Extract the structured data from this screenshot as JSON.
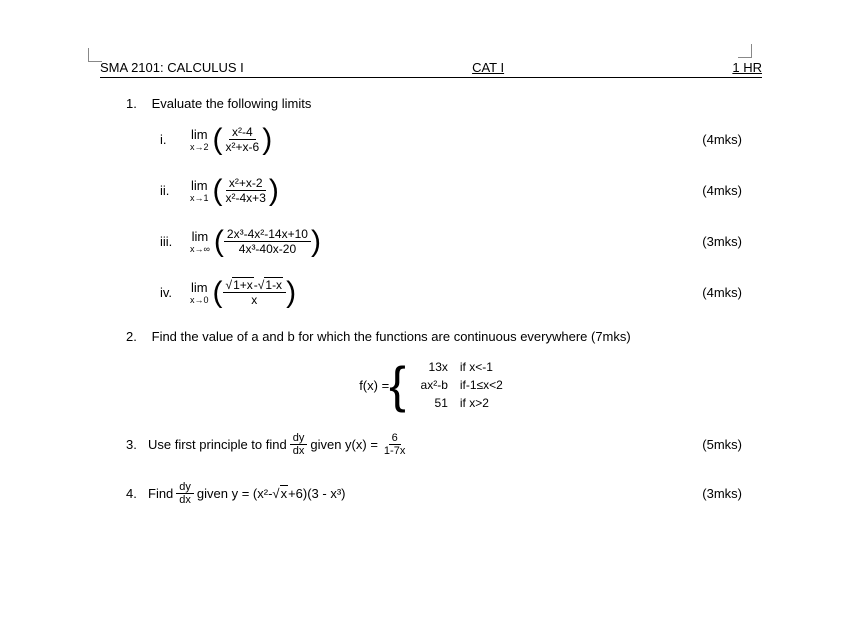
{
  "header": {
    "course": "SMA 2101: CALCULUS I",
    "exam": "CAT I",
    "duration": "1 HR"
  },
  "q1": {
    "num": "1.",
    "text": "Evaluate the following limits",
    "items": {
      "i": {
        "label": "i.",
        "lim_bot": "x→2",
        "num": "x²-4",
        "den": "x²+x-6",
        "marks": "(4mks)"
      },
      "ii": {
        "label": "ii.",
        "lim_bot": "x→1",
        "num": "x²+x-2",
        "den": "x²-4x+3",
        "marks": "(4mks)"
      },
      "iii": {
        "label": "iii.",
        "lim_bot": "x→∞",
        "num": "2x³-4x²-14x+10",
        "den": "4x³-40x-20",
        "marks": "(3mks)"
      },
      "iv": {
        "label": "iv.",
        "lim_bot": "x→0",
        "marks": "(4mks)"
      }
    }
  },
  "q2": {
    "num": "2.",
    "text": "Find the value of a and b for which the functions are continuous everywhere (7mks)",
    "prefix": "f(x) = ",
    "rows": {
      "r1": {
        "expr": "13x",
        "cond": "if x<-1"
      },
      "r2": {
        "expr": "ax²-b",
        "cond": "if-1≤x<2"
      },
      "r3": {
        "expr": "51",
        "cond": "if x>2"
      }
    }
  },
  "q3": {
    "num": "3.",
    "text1": "Use first principle to find ",
    "text2": " given  y(x) = ",
    "frac_num": "6",
    "frac_den": "1-7x",
    "marks": "(5mks)"
  },
  "q4": {
    "num": "4.",
    "text1": "Find ",
    "text2": " given y = (x²-",
    "text3": "+6)(3 - x³)",
    "sqrt": "x",
    "marks": "(3mks)"
  },
  "dydx": {
    "num": "dy",
    "den": "dx"
  },
  "lim_label": "lim"
}
